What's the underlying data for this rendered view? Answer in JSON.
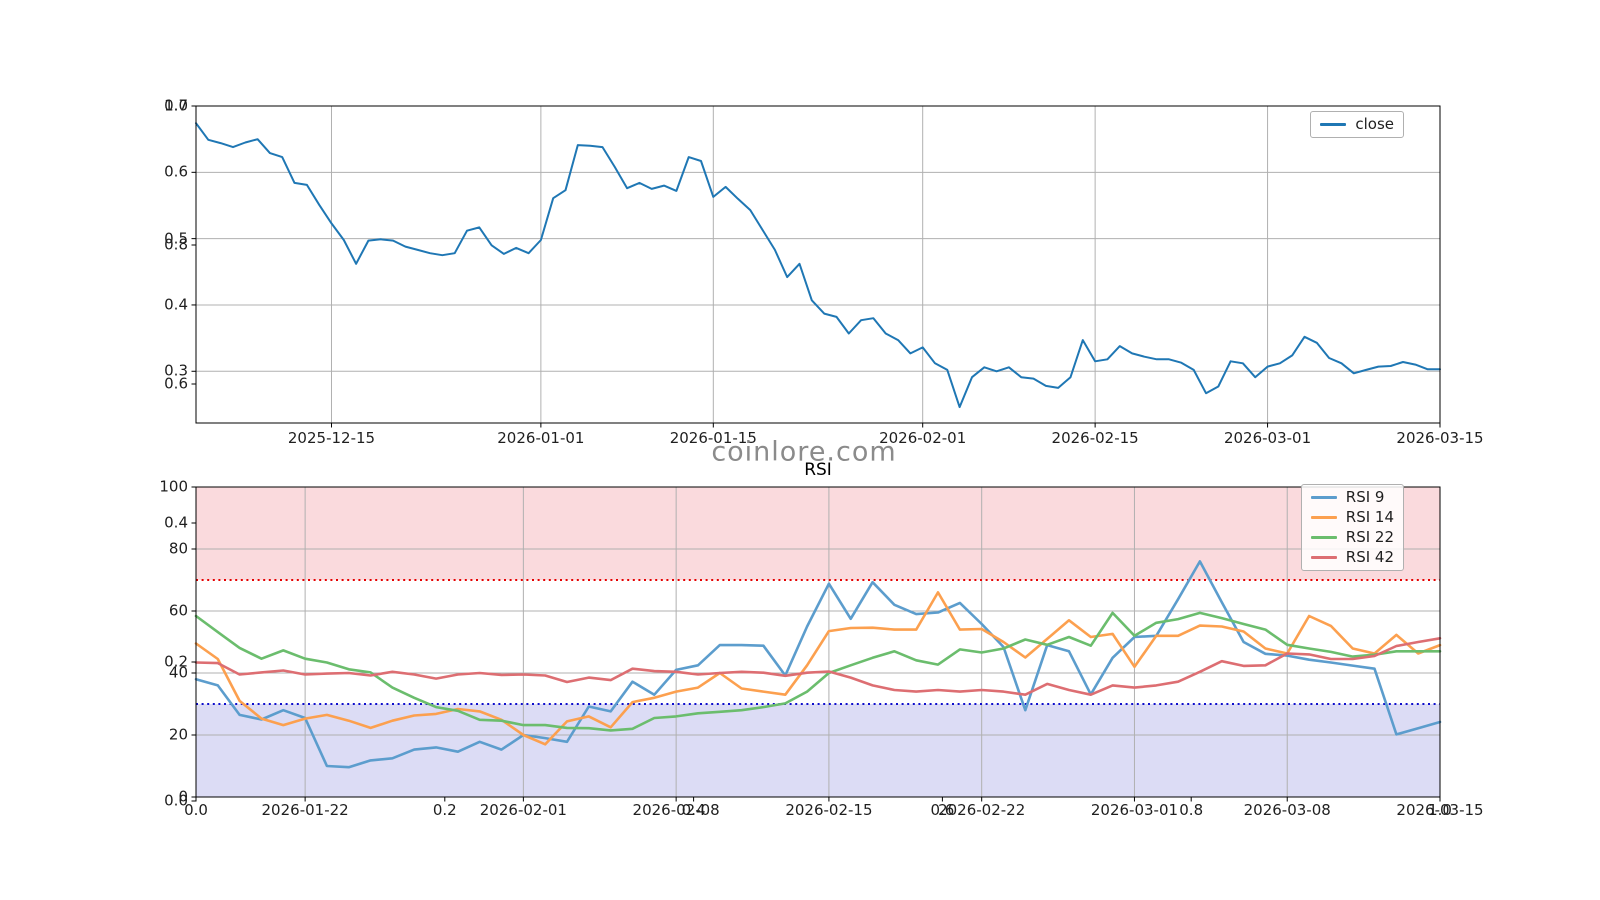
{
  "watermark": "coinlore.com",
  "colors": {
    "grid": "#b0b0b0",
    "spine": "#000000",
    "overbought_band": "#fadadd",
    "oversold_band": "#dcdcf5",
    "overbought_line": "#e50000",
    "oversold_line": "#0d0dcc",
    "watermark": "#828282"
  },
  "figure_axis": {
    "x_ticks": [
      {
        "label": "0.0",
        "f": 0.0
      },
      {
        "label": "0.2",
        "f": 0.2
      },
      {
        "label": "0.4",
        "f": 0.4
      },
      {
        "label": "0.6",
        "f": 0.6
      },
      {
        "label": "0.8",
        "f": 0.8
      },
      {
        "label": "1.0",
        "f": 1.0
      }
    ],
    "y_ticks": [
      {
        "label": "1.0",
        "f": 0.0
      },
      {
        "label": "0.8",
        "f": 0.2
      },
      {
        "label": "0.6",
        "f": 0.4
      },
      {
        "label": "0.4",
        "f": 0.6
      },
      {
        "label": "0.2",
        "f": 0.8
      },
      {
        "label": "0.0",
        "f": 1.0
      }
    ]
  },
  "chart_data": [
    {
      "type": "line",
      "title": "",
      "xlabel": "",
      "ylabel": "",
      "grid": true,
      "legend_position": "upper right",
      "x_start": "2025-12-04",
      "x_step_days": 1,
      "ylim": [
        0.222,
        0.7
      ],
      "x_ticks": [
        {
          "label": "2025-12-15",
          "i": 11
        },
        {
          "label": "2026-01-01",
          "i": 28
        },
        {
          "label": "2026-01-15",
          "i": 42
        },
        {
          "label": "2026-02-01",
          "i": 59
        },
        {
          "label": "2026-02-15",
          "i": 73
        },
        {
          "label": "2026-03-01",
          "i": 87
        },
        {
          "label": "2026-03-15",
          "i": 101
        }
      ],
      "y_ticks": [
        {
          "label": "0.7",
          "v": 0.7
        },
        {
          "label": "0.6",
          "v": 0.6
        },
        {
          "label": "0.5",
          "v": 0.5
        },
        {
          "label": "0.4",
          "v": 0.4
        },
        {
          "label": "0.3",
          "v": 0.3
        }
      ],
      "series": [
        {
          "name": "close",
          "color": "#1f77b4",
          "values": [
            0.674,
            0.649,
            0.644,
            0.638,
            0.645,
            0.65,
            0.629,
            0.623,
            0.584,
            0.581,
            0.551,
            0.523,
            0.498,
            0.462,
            0.497,
            0.499,
            0.497,
            0.488,
            0.483,
            0.478,
            0.475,
            0.478,
            0.512,
            0.517,
            0.49,
            0.477,
            0.486,
            0.478,
            0.498,
            0.561,
            0.573,
            0.641,
            0.64,
            0.638,
            0.608,
            0.576,
            0.584,
            0.575,
            0.58,
            0.572,
            0.623,
            0.617,
            0.563,
            0.578,
            0.56,
            0.543,
            0.513,
            0.483,
            0.442,
            0.462,
            0.407,
            0.387,
            0.382,
            0.357,
            0.377,
            0.38,
            0.357,
            0.347,
            0.327,
            0.336,
            0.312,
            0.302,
            0.246,
            0.291,
            0.306,
            0.3,
            0.306,
            0.291,
            0.289,
            0.278,
            0.275,
            0.291,
            0.347,
            0.315,
            0.318,
            0.338,
            0.327,
            0.322,
            0.318,
            0.318,
            0.313,
            0.302,
            0.267,
            0.277,
            0.315,
            0.312,
            0.291,
            0.307,
            0.312,
            0.324,
            0.352,
            0.343,
            0.32,
            0.312,
            0.297,
            0.302,
            0.307,
            0.308,
            0.314,
            0.31,
            0.303,
            0.303
          ]
        }
      ]
    },
    {
      "type": "line",
      "title": "RSI",
      "xlabel": "",
      "ylabel": "",
      "grid": true,
      "legend_position": "upper right",
      "x_start": "2026-01-17",
      "x_step_days": 1,
      "ylim": [
        0,
        100
      ],
      "overbought_level": 70,
      "oversold_level": 30,
      "x_ticks": [
        {
          "label": "2026-01-22",
          "i": 5
        },
        {
          "label": "2026-02-01",
          "i": 15
        },
        {
          "label": "2026-02-08",
          "i": 22
        },
        {
          "label": "2026-02-15",
          "i": 29
        },
        {
          "label": "2026-02-22",
          "i": 36
        },
        {
          "label": "2026-03-01",
          "i": 43
        },
        {
          "label": "2026-03-08",
          "i": 50
        },
        {
          "label": "2026-03-15",
          "i": 57
        }
      ],
      "y_ticks": [
        {
          "label": "100",
          "v": 100
        },
        {
          "label": "80",
          "v": 80
        },
        {
          "label": "60",
          "v": 60
        },
        {
          "label": "40",
          "v": 40
        },
        {
          "label": "20",
          "v": 20
        },
        {
          "label": "0",
          "v": 0
        }
      ],
      "series": [
        {
          "name": "RSI 9",
          "color": "#5c9dcd",
          "values": [
            38,
            36,
            26.5,
            25,
            28,
            25.5,
            10,
            9.6,
            11.8,
            12.5,
            15.3,
            16,
            14.6,
            17.8,
            15.3,
            20,
            19,
            17.8,
            29.2,
            27.6,
            37.2,
            33,
            41,
            42.5,
            49,
            49,
            48.8,
            39.2,
            55,
            68.8,
            57.5,
            69.3,
            62,
            59,
            59.5,
            62.6,
            55.8,
            48.4,
            28,
            49,
            47,
            33.1,
            44.9,
            51.6,
            52,
            63.8,
            76,
            62.8,
            50,
            46.2,
            45.6,
            44.3,
            43.4,
            42.4,
            41.4,
            20.2,
            22.2,
            24.2
          ]
        },
        {
          "name": "RSI 14",
          "color": "#fca04f",
          "values": [
            49.5,
            44.5,
            31,
            25.3,
            23.2,
            25.3,
            26.5,
            24.6,
            22.3,
            24.6,
            26.3,
            26.8,
            28.4,
            27.6,
            24.9,
            20,
            17,
            24.4,
            26,
            22.5,
            30.6,
            32,
            34,
            35.3,
            40,
            35,
            34,
            33,
            42.5,
            53.5,
            54.5,
            54.6,
            54,
            54,
            66,
            54,
            54.2,
            50,
            45,
            51,
            57,
            51.6,
            52.6,
            42,
            52,
            52,
            55.3,
            55,
            53.4,
            47.9,
            46.3,
            58.4,
            55.2,
            47.9,
            46.3,
            52.3,
            46.3,
            49
          ]
        },
        {
          "name": "RSI 22",
          "color": "#6bbd6d",
          "values": [
            58.4,
            53.2,
            48.1,
            44.6,
            47.3,
            44.6,
            43.4,
            41.2,
            40.2,
            35.3,
            32,
            29,
            27.8,
            24.9,
            24.6,
            23.2,
            23.2,
            22.3,
            22.2,
            21.5,
            22,
            25.5,
            26,
            27,
            27.5,
            28,
            29,
            30.2,
            34,
            40,
            42.5,
            44.9,
            47,
            44.1,
            42.7,
            47.6,
            46.6,
            47.9,
            50.8,
            49.1,
            51.6,
            48.8,
            59.4,
            52,
            56.2,
            57.4,
            59.4,
            57.7,
            55.8,
            54,
            49.1,
            47.9,
            46.8,
            45.3,
            45.9,
            47,
            47,
            47
          ]
        },
        {
          "name": "RSI 42",
          "color": "#dd6e72",
          "values": [
            43.4,
            43.2,
            39.5,
            40.2,
            40.8,
            39.5,
            39.8,
            40,
            39.2,
            40.4,
            39.5,
            38.2,
            39.5,
            40,
            39.4,
            39.5,
            39.2,
            37.1,
            38.5,
            37.7,
            41.4,
            40.6,
            40.4,
            39.5,
            40,
            40.4,
            40.1,
            39.1,
            40.1,
            40.5,
            38.5,
            36,
            34.5,
            34,
            34.5,
            34,
            34.5,
            34,
            33,
            36.5,
            34.5,
            33,
            36,
            35.3,
            36,
            37.2,
            40.4,
            43.8,
            42.3,
            42.5,
            46.3,
            46,
            44.5,
            44.5,
            45.5,
            48.7,
            50,
            51.2
          ]
        }
      ]
    }
  ]
}
